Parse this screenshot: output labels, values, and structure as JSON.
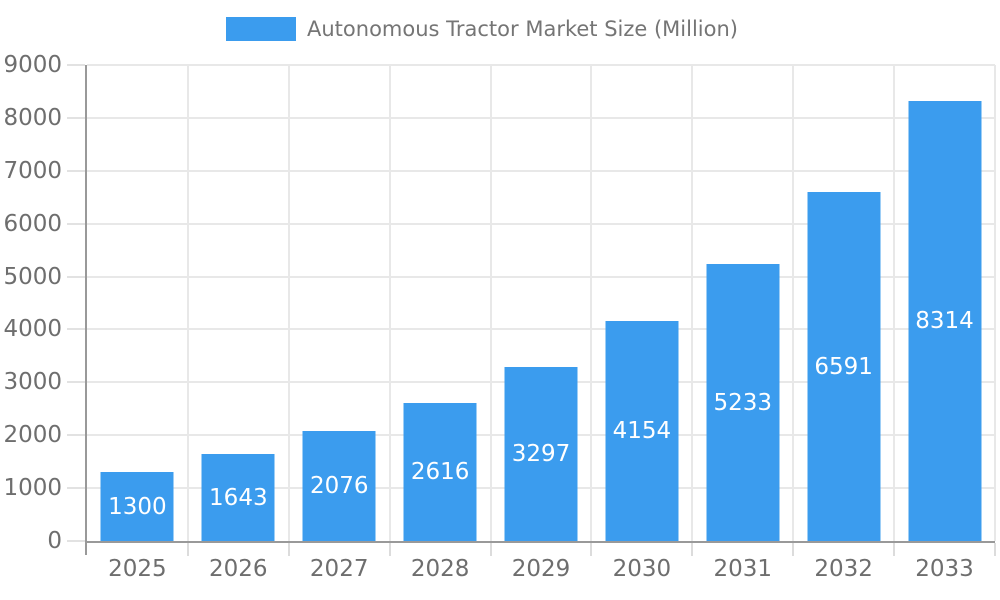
{
  "legend": {
    "label": "Autonomous Tractor Market Size (Million)"
  },
  "chart_data": {
    "type": "bar",
    "title": "Autonomous Tractor Market Size (Million)",
    "categories": [
      "2025",
      "2026",
      "2027",
      "2028",
      "2029",
      "2030",
      "2031",
      "2032",
      "2033"
    ],
    "series": [
      {
        "name": "Autonomous Tractor Market Size (Million)",
        "values": [
          1300,
          1643,
          2076,
          2616,
          3297,
          4154,
          5233,
          6591,
          8314
        ]
      }
    ],
    "xlabel": "",
    "ylabel": "",
    "ylim": [
      0,
      9000
    ],
    "ytick_step": 1000,
    "grid": true,
    "legend_position": "top",
    "value_labels": "inside-center",
    "colors": {
      "bar_fill": "#3b9cee",
      "grid_line": "#e8e8e8",
      "axis_line": "#999999",
      "tick_text": "#6e6e6e",
      "legend_text": "#757575",
      "value_label_text": "#ffffff",
      "background": "#ffffff"
    }
  }
}
